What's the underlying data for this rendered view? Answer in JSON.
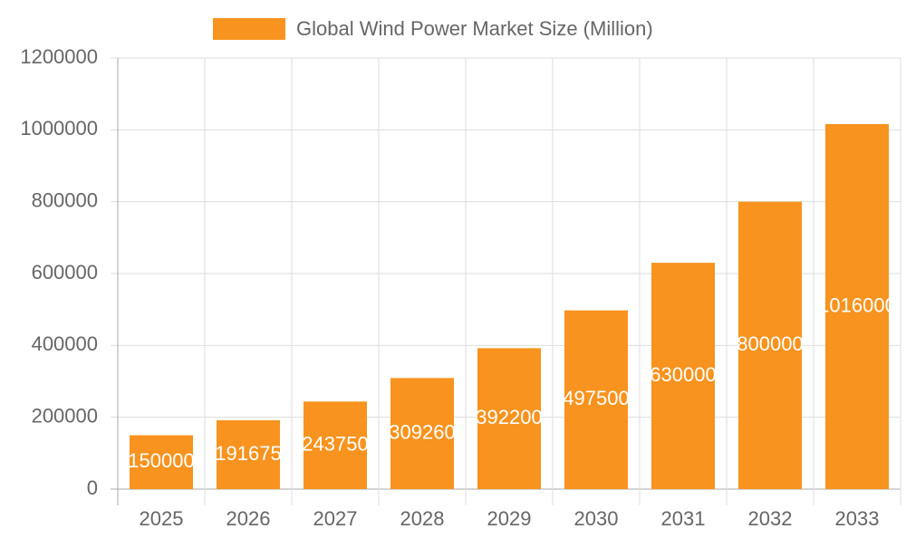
{
  "chart_data": {
    "type": "bar",
    "categories": [
      "2025",
      "2026",
      "2027",
      "2028",
      "2029",
      "2030",
      "2031",
      "2032",
      "2033"
    ],
    "series": [
      {
        "name": "Global Wind Power Market Size (Million)",
        "color": "#f7931e",
        "values": [
          150000,
          191675,
          243750,
          309260,
          392200,
          497500,
          630000,
          800000,
          1016000
        ]
      }
    ],
    "ylim": [
      0,
      1200000
    ],
    "yticks": [
      0,
      200000,
      400000,
      600000,
      800000,
      1000000,
      1200000
    ],
    "grid": true,
    "legend": "top",
    "data_labels": true
  }
}
